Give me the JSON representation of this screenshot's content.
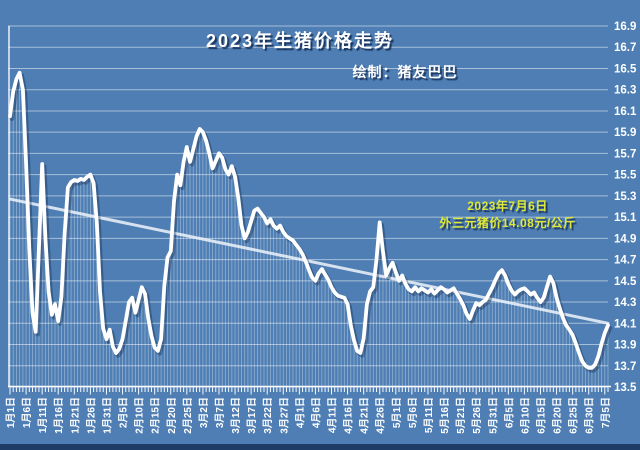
{
  "page": {
    "background": "#4e7eb3",
    "bottom_strip_color": "#1e3c66"
  },
  "header": {
    "title": "2023年生猪价格走势",
    "subtitle": "绘制：猪友巴巴"
  },
  "annotation": {
    "line1": "2023年7月6日",
    "line2": "外三元猪价14.08元/公斤",
    "color": "#e0e838"
  },
  "chart_data": {
    "type": "line",
    "title": "2023年生猪价格走势",
    "xlabel": "",
    "ylabel": "",
    "ylim": [
      13.5,
      16.9
    ],
    "y_tick_step": 0.2,
    "y_tick_labels": [
      "16.9",
      "16.7",
      "16.5",
      "16.3",
      "16.1",
      "15.9",
      "15.7",
      "15.5",
      "15.3",
      "15.1",
      "14.9",
      "14.7",
      "14.5",
      "14.3",
      "14.1",
      "13.9",
      "13.7",
      "13.5"
    ],
    "x_tick_interval_days": 5,
    "x_tick_labels": [
      "1月1日",
      "1月6日",
      "1月11日",
      "1月16日",
      "1月21日",
      "1月26日",
      "1月31日",
      "2月5日",
      "2月10日",
      "2月15日",
      "2月20日",
      "2月25日",
      "3月2日",
      "3月7日",
      "3月12日",
      "3月17日",
      "3月22日",
      "3月27日",
      "4月1日",
      "4月6日",
      "4月11日",
      "4月16日",
      "4月21日",
      "4月26日",
      "5月1日",
      "5月6日",
      "5月11日",
      "5月16日",
      "5月21日",
      "5月26日",
      "5月31日",
      "6月5日",
      "6月10日",
      "6月15日",
      "6月20日",
      "6月25日",
      "6月30日",
      "7月5日"
    ],
    "grid": "horizontal",
    "line_color": "#ffffff",
    "drop_lines": true,
    "legend_position": "none",
    "trend_line": {
      "start_value": 15.27,
      "end_value": 14.1
    },
    "series": [
      {
        "name": "外三元猪价(元/公斤)",
        "values": [
          16.05,
          16.28,
          16.4,
          16.46,
          16.3,
          15.6,
          14.8,
          14.2,
          14.02,
          14.8,
          15.6,
          14.9,
          14.4,
          14.18,
          14.28,
          14.12,
          14.35,
          14.95,
          15.38,
          15.43,
          15.45,
          15.44,
          15.46,
          15.45,
          15.48,
          15.5,
          15.42,
          15.05,
          14.4,
          14.05,
          13.95,
          14.04,
          13.88,
          13.82,
          13.86,
          13.95,
          14.12,
          14.3,
          14.34,
          14.2,
          14.32,
          14.44,
          14.38,
          14.15,
          13.98,
          13.87,
          13.84,
          13.95,
          14.45,
          14.72,
          14.78,
          15.25,
          15.5,
          15.4,
          15.62,
          15.76,
          15.62,
          15.74,
          15.86,
          15.93,
          15.9,
          15.82,
          15.7,
          15.56,
          15.63,
          15.7,
          15.66,
          15.55,
          15.5,
          15.58,
          15.48,
          15.28,
          15.02,
          14.9,
          14.96,
          15.06,
          15.16,
          15.18,
          15.14,
          15.1,
          15.04,
          15.08,
          15.02,
          14.99,
          15.02,
          14.96,
          14.92,
          14.9,
          14.88,
          14.84,
          14.8,
          14.75,
          14.68,
          14.6,
          14.53,
          14.5,
          14.57,
          14.61,
          14.56,
          14.51,
          14.44,
          14.39,
          14.36,
          14.35,
          14.34,
          14.28,
          14.08,
          13.94,
          13.84,
          13.82,
          13.96,
          14.28,
          14.4,
          14.44,
          14.7,
          15.05,
          14.78,
          14.55,
          14.62,
          14.67,
          14.58,
          14.5,
          14.55,
          14.47,
          14.42,
          14.4,
          14.44,
          14.4,
          14.43,
          14.41,
          14.39,
          14.42,
          14.38,
          14.41,
          14.44,
          14.42,
          14.39,
          14.41,
          14.43,
          14.38,
          14.33,
          14.27,
          14.19,
          14.14,
          14.22,
          14.29,
          14.27,
          14.3,
          14.32,
          14.38,
          14.44,
          14.51,
          14.57,
          14.6,
          14.55,
          14.47,
          14.41,
          14.37,
          14.4,
          14.42,
          14.43,
          14.4,
          14.37,
          14.39,
          14.34,
          14.3,
          14.34,
          14.44,
          14.54,
          14.48,
          14.34,
          14.24,
          14.15,
          14.08,
          14.04,
          13.99,
          13.91,
          13.82,
          13.74,
          13.7,
          13.68,
          13.68,
          13.71,
          13.79,
          13.91,
          14.01,
          14.08
        ]
      }
    ]
  }
}
